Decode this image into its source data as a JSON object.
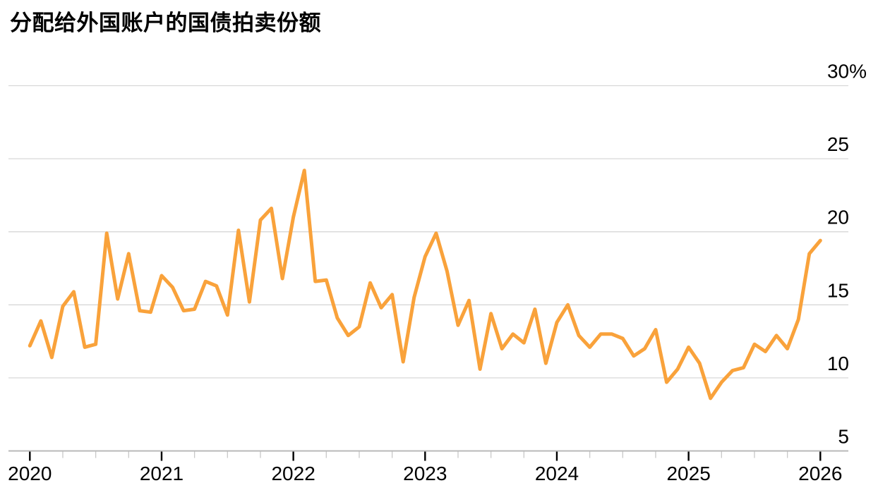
{
  "header": {
    "title": "分配给外国账户的国债拍卖份额"
  },
  "chart_data": {
    "type": "line",
    "title": "分配给外国账户的国债拍卖份额",
    "unit": "%",
    "grid": "horizontal",
    "legend": "none",
    "x_axis": {
      "start": "2020-01",
      "end": "2026-01",
      "frequency": "monthly",
      "year_labels": [
        "2020",
        "2021",
        "2022",
        "2023",
        "2024",
        "2025",
        "2026"
      ],
      "minor_ticks": "quarterly"
    },
    "y_axis": {
      "range": [
        5,
        30
      ],
      "ticks": [
        30,
        25,
        20,
        15,
        10,
        5
      ],
      "tick_labels": [
        "30%",
        "25",
        "20",
        "15",
        "10",
        "5"
      ],
      "label_side": "right"
    },
    "series": [
      {
        "name": "国债拍卖份额",
        "color": "#F9A23B",
        "values": [
          12.2,
          13.9,
          11.4,
          14.9,
          15.9,
          12.1,
          12.3,
          19.9,
          15.4,
          18.5,
          14.6,
          14.5,
          17.0,
          16.2,
          14.6,
          14.7,
          16.6,
          16.3,
          14.3,
          20.1,
          15.2,
          20.8,
          21.6,
          16.8,
          21.0,
          24.2,
          16.6,
          16.7,
          14.1,
          12.9,
          13.5,
          16.5,
          14.8,
          15.7,
          11.1,
          15.5,
          18.3,
          19.9,
          17.3,
          13.6,
          15.3,
          10.6,
          14.4,
          12.0,
          13.0,
          12.4,
          14.7,
          11.0,
          13.8,
          15.0,
          12.9,
          12.1,
          13.0,
          13.0,
          12.7,
          11.5,
          12.0,
          13.3,
          9.7,
          10.6,
          12.1,
          11.0,
          8.6,
          9.7,
          10.5,
          10.7,
          12.3,
          11.8,
          12.9,
          12.0,
          14.0,
          18.5,
          19.4
        ]
      }
    ]
  },
  "colors": {
    "line": "#F9A23B",
    "grid": "#D8D8D8",
    "axis": "#B9B9B9",
    "minor_tick": "#C8C8C8",
    "year_tick": "#000000",
    "text": "#000000",
    "background": "#FFFFFF"
  }
}
